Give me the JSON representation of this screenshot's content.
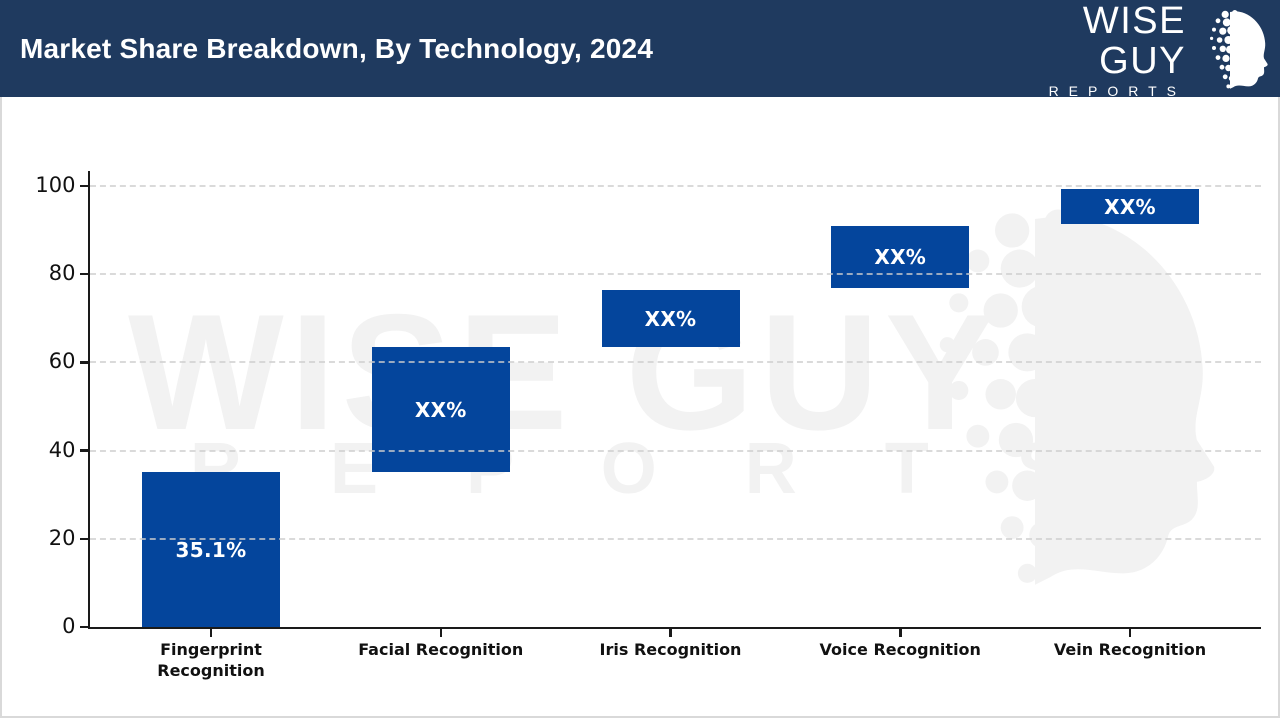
{
  "header": {
    "title": "Market Share Breakdown, By Technology, 2024",
    "logo_line1": "WISE GUY",
    "logo_line2": "REPORTS"
  },
  "watermark": {
    "line1": "WISE GUY",
    "line2": "R E P O R T S"
  },
  "colors": {
    "header_bg": "#1F3A5F",
    "bar_blue": "#04459C",
    "axis": "#1A1A1A",
    "grid": "#CDCDCD",
    "frame_border": "#D9D9D9",
    "watermark": "#F2F2F2",
    "bar_label": "#FFFFFF",
    "tick_text": "#111111"
  },
  "chart_data": {
    "type": "bar",
    "subtype": "waterfall",
    "title": "Market Share Breakdown, By Technology, 2024",
    "categories": [
      "Fingerprint\nRecognition",
      "Facial Recognition",
      "Iris Recognition",
      "Voice Recognition",
      "Vein Recognition"
    ],
    "segments": [
      {
        "category": "Fingerprint Recognition",
        "start": 0,
        "end": 35.1,
        "label": "35.1%"
      },
      {
        "category": "Facial Recognition",
        "start": 35.1,
        "end": 63.4,
        "label": "XX%"
      },
      {
        "category": "Iris Recognition",
        "start": 63.5,
        "end": 76.4,
        "label": "XX%"
      },
      {
        "category": "Voice Recognition",
        "start": 76.8,
        "end": 91.0,
        "label": "XX%"
      },
      {
        "category": "Vein Recognition",
        "start": 91.3,
        "end": 99.3,
        "label": "XX%"
      }
    ],
    "bar_color": "#04459C",
    "label_color": "#FFFFFF",
    "xlabel": "",
    "ylabel": "",
    "yticks": [
      0,
      20,
      40,
      60,
      80,
      100
    ],
    "ylim": [
      0,
      103.5
    ],
    "grid": "dashed-horizontal",
    "legend": "none"
  }
}
